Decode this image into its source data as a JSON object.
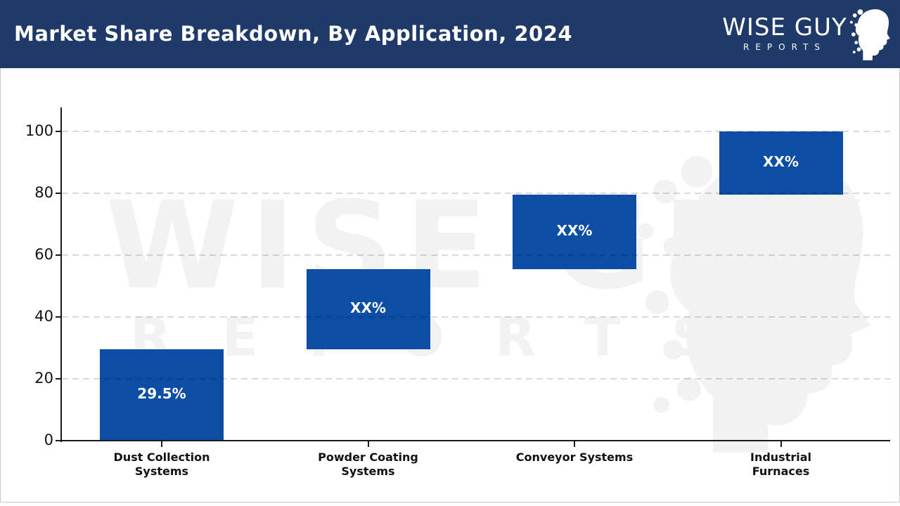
{
  "header": {
    "title": "Market Share Breakdown, By Application, 2024",
    "logo": {
      "name": "WISE GUY",
      "sub": "REPORTS"
    }
  },
  "watermark": {
    "line1": "WISE GUY",
    "line2": "REPORTS"
  },
  "chart_data": {
    "type": "bar",
    "variant": "floating-segment-waterfall",
    "title": "Market Share Breakdown, By Application, 2024",
    "categories": [
      "Dust Collection\nSystems",
      "Powder Coating\nSystems",
      "Conveyor Systems",
      "Industrial\nFurnaces"
    ],
    "segments": [
      {
        "category": "Dust Collection Systems",
        "start": 0,
        "end": 29.5,
        "label": "29.5%"
      },
      {
        "category": "Powder Coating Systems",
        "start": 29.5,
        "end": 55.5,
        "label": "XX%"
      },
      {
        "category": "Conveyor Systems",
        "start": 55.5,
        "end": 79.5,
        "label": "XX%"
      },
      {
        "category": "Industrial Furnaces",
        "start": 79.5,
        "end": 100,
        "label": "XX%"
      }
    ],
    "yticks": [
      0,
      20,
      40,
      60,
      80,
      100
    ],
    "ylim": [
      0,
      107
    ],
    "xlabel": "",
    "ylabel": "",
    "legend": "none",
    "grid": "horizontal-dashed"
  },
  "colors": {
    "header_bg": "#1f3a68",
    "bar": "#0c4da6",
    "axis": "#1a1a1a",
    "gridline": "rgba(0,0,0,0.15)",
    "watermark": "#f2f2f2",
    "frame_border": "#c9c9c9",
    "bar_label_text": "#ffffff",
    "title_text": "#ffffff"
  }
}
